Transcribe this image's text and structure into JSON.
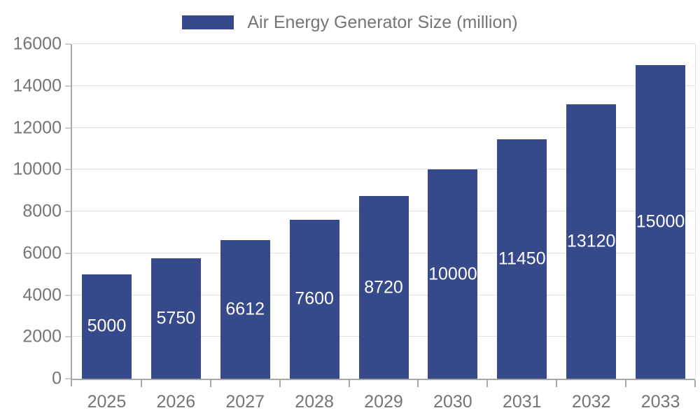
{
  "chart_data": {
    "type": "bar",
    "series_label": "Air Energy Generator Size (million)",
    "categories": [
      "2025",
      "2026",
      "2027",
      "2028",
      "2029",
      "2030",
      "2031",
      "2032",
      "2033"
    ],
    "values": [
      5000,
      5750,
      6612,
      7600,
      8720,
      10000,
      11450,
      13120,
      15000
    ],
    "value_labels_shown": true,
    "value_label_position": "inside-center",
    "ylim": [
      0,
      16000
    ],
    "yticks": [
      0,
      2000,
      4000,
      6000,
      8000,
      10000,
      12000,
      14000,
      16000
    ],
    "grid": true,
    "legend_position": "top-center",
    "colors": {
      "bar": "#36498B",
      "grid": "#E0E0E0",
      "axis": "#A8A8A8",
      "y_tick": "#CCCCCC",
      "axis_text": "#757575",
      "legend_text": "#757575",
      "value_label_text": "#FFFFFF",
      "background": "#FFFFFF"
    }
  }
}
